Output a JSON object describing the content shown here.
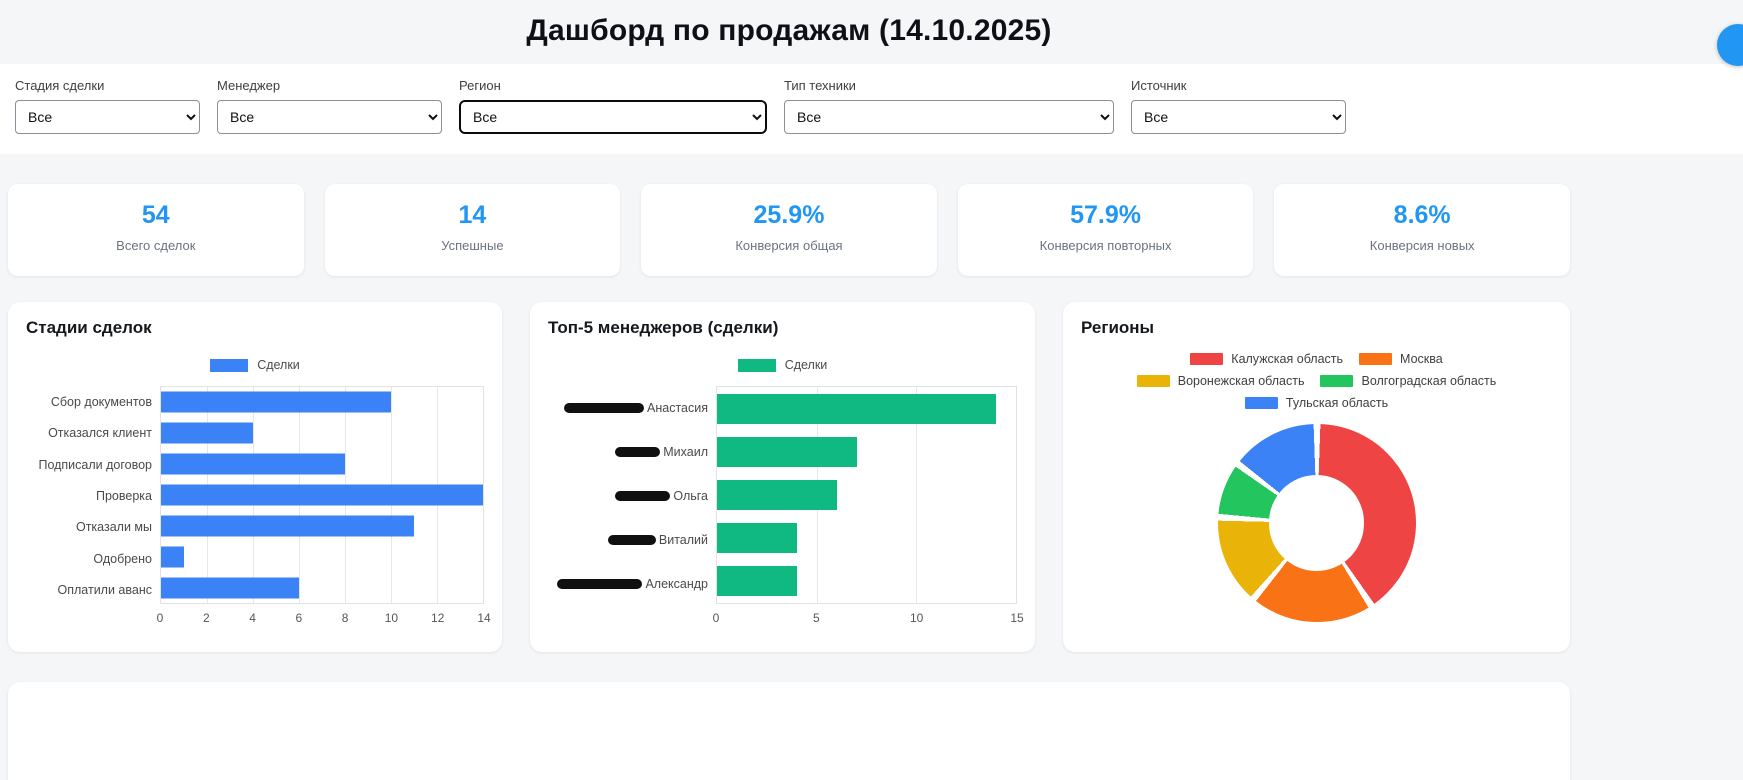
{
  "page": {
    "title": "Дашборд по продажам (14.10.2025)"
  },
  "colors": {
    "accent": "#2196f3"
  },
  "filters": [
    {
      "label": "Стадия сделки",
      "value": "Все",
      "focused": false
    },
    {
      "label": "Менеджер",
      "value": "Все",
      "focused": false
    },
    {
      "label": "Регион",
      "value": "Все",
      "focused": true
    },
    {
      "label": "Тип техники",
      "value": "Все",
      "focused": false
    },
    {
      "label": "Источник",
      "value": "Все",
      "focused": false
    }
  ],
  "kpis": [
    {
      "value": "54",
      "label": "Всего сделок"
    },
    {
      "value": "14",
      "label": "Успешные"
    },
    {
      "value": "25.9%",
      "label": "Конверсия общая"
    },
    {
      "value": "57.9%",
      "label": "Конверсия повторных"
    },
    {
      "value": "8.6%",
      "label": "Конверсия новых"
    }
  ],
  "chart_data": [
    {
      "type": "bar",
      "orientation": "horizontal",
      "title": "Стадии сделок",
      "legend": [
        "Сделки"
      ],
      "categories": [
        "Сбор документов",
        "Отказался клиент",
        "Подписали договор",
        "Проверка",
        "Отказали мы",
        "Одобрено",
        "Оплатили аванс"
      ],
      "values": [
        10,
        4,
        8,
        14,
        11,
        1,
        6
      ],
      "xlim": [
        0,
        14
      ],
      "xticks": [
        0,
        2,
        4,
        6,
        8,
        10,
        12,
        14
      ],
      "bar_color": "#3b82f6",
      "grid": true,
      "legend_position": "top"
    },
    {
      "type": "bar",
      "orientation": "horizontal",
      "title": "Топ-5 менеджеров (сделки)",
      "legend": [
        "Сделки"
      ],
      "categories": [
        "Анастасия",
        "Михаил",
        "Ольга",
        "Виталий",
        "Александр"
      ],
      "redaction_widths": [
        80,
        45,
        55,
        48,
        85
      ],
      "values": [
        14,
        7,
        6,
        4,
        4
      ],
      "xlim": [
        0,
        15
      ],
      "xticks": [
        0,
        5,
        10,
        15
      ],
      "bar_color": "#10b981",
      "grid": true,
      "legend_position": "top"
    },
    {
      "type": "pie",
      "subtype": "doughnut",
      "title": "Регионы",
      "labels": [
        "Калужская область",
        "Москва",
        "Воронежская область",
        "Волгоградская область",
        "Тульская область"
      ],
      "values": [
        22,
        11,
        8,
        5,
        8
      ],
      "colors": [
        "#ef4444",
        "#f97316",
        "#eab308",
        "#22c55e",
        "#3b82f6"
      ],
      "legend_position": "top"
    }
  ]
}
